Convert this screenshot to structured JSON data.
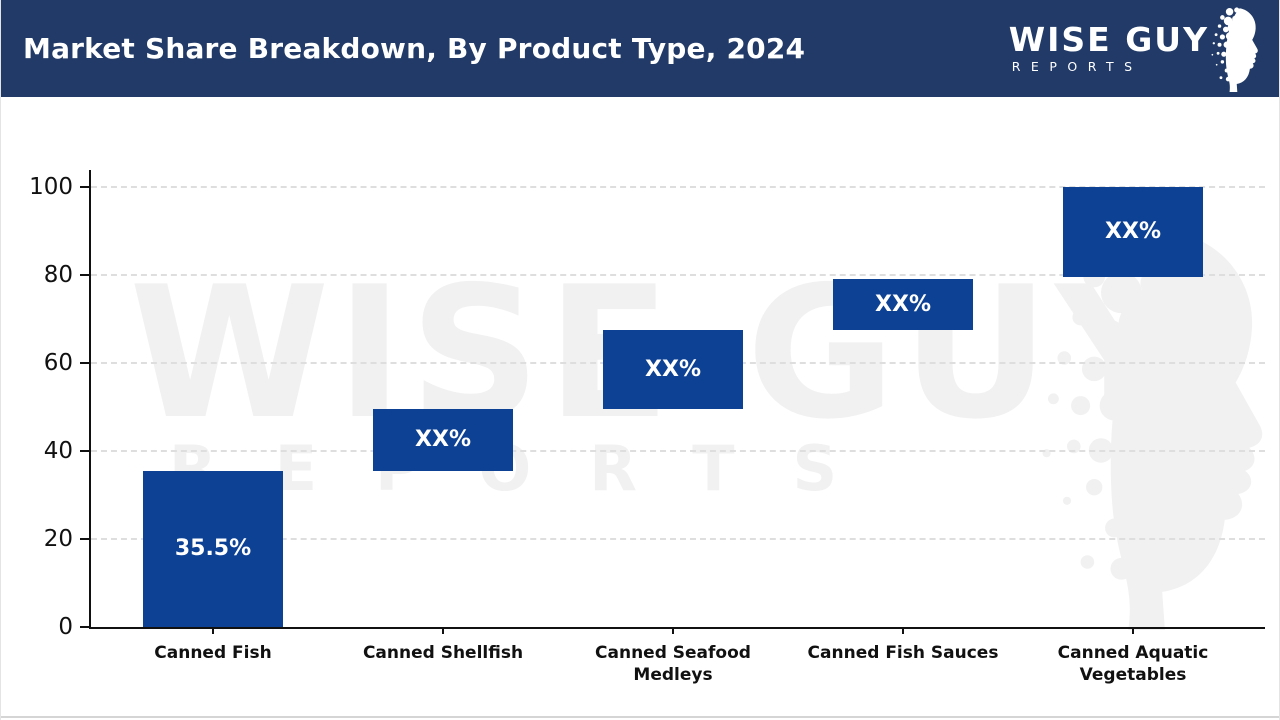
{
  "header": {
    "title": "Market Share Breakdown, By Product Type, 2024",
    "bg_color": "#213a67",
    "logo": {
      "line1": "WISE GUY",
      "line2": "REPORTS",
      "icon": "dotted-head-icon"
    }
  },
  "watermark": {
    "line1": "WISE GUY",
    "line2": "REPORTS",
    "icon": "dotted-head-icon"
  },
  "colors": {
    "bar": "#0c4194",
    "bar_label": "#ffffff",
    "axis": "#111111",
    "grid": "#dedede",
    "watermark": "#f1f1f1",
    "header_bg": "#213a67"
  },
  "chart_data": {
    "type": "bar",
    "variant": "waterfall",
    "title": "Market Share Breakdown, By Product Type, 2024",
    "categories": [
      "Canned Fish",
      "Canned Shellfish",
      "Canned Seafood Medleys",
      "Canned Fish Sauces",
      "Canned Aquatic Vegetables"
    ],
    "segments": [
      {
        "category": "Canned Fish",
        "start": 0,
        "end": 35.5,
        "label": "35.5%"
      },
      {
        "category": "Canned Shellfish",
        "start": 35.5,
        "end": 49.5,
        "label": "XX%"
      },
      {
        "category": "Canned Seafood Medleys",
        "start": 49.5,
        "end": 67.5,
        "label": "XX%"
      },
      {
        "category": "Canned Fish Sauces",
        "start": 67.5,
        "end": 79,
        "label": "XX%"
      },
      {
        "category": "Canned Aquatic Vegetables",
        "start": 79.5,
        "end": 100,
        "label": "XX%"
      }
    ],
    "ylim": [
      0,
      100
    ],
    "yticks": [
      0,
      20,
      40,
      60,
      80,
      100
    ],
    "xlabel": "",
    "ylabel": "",
    "grid": "horizontal-dashed",
    "legend": "none",
    "bar_color": "#0c4194",
    "label_color": "#ffffff"
  }
}
